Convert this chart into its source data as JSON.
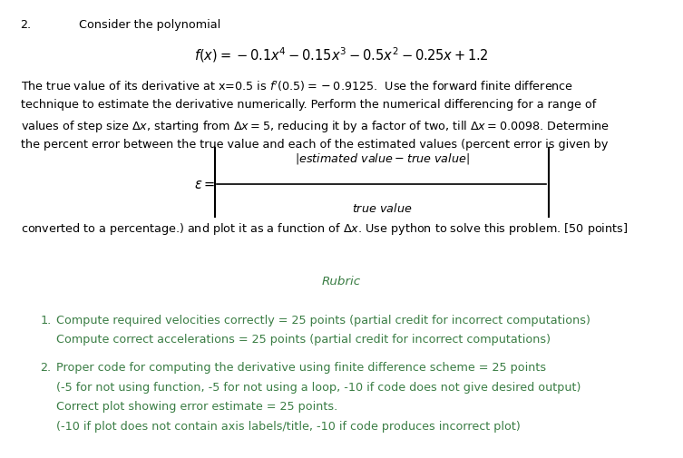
{
  "background_color": "#ffffff",
  "fig_width": 7.53,
  "fig_height": 5.06,
  "number_text": "2.",
  "header_text": "Consider the polynomial",
  "formula_text": "$f(x) = -0.1x^4 - 0.15x^3 - 0.5x^2 - 0.25x + 1.2$",
  "line1": "The true value of its derivative at x=0.5 is $f'(0.5) = -0.9125$.  Use the forward finite difference",
  "line2": "technique to estimate the derivative numerically. Perform the numerical differencing for a range of",
  "line3": "values of step size $\\Delta x$, starting from $\\Delta x = 5$, reducing it by a factor of two, till $\\Delta x = 0.0098$. Determine",
  "line4": "the percent error between the true value and each of the estimated values (percent error is given by",
  "line5": "converted to a percentage.) and plot it as a function of $\\Delta x$. Use python to solve this problem. [50 points]",
  "rubric_title": "Rubric",
  "rubric_color": "#3a7d44",
  "rubric_item1_line1": "Compute required velocities correctly = 25 points (partial credit for incorrect computations)",
  "rubric_item1_line2": "Compute correct accelerations = 25 points (partial credit for incorrect computations)",
  "rubric_item2_line1": "Proper code for computing the derivative using finite difference scheme = 25 points",
  "rubric_item2_line2": "(-5 for not using function, -5 for not using a loop, -10 if code does not give desired output)",
  "rubric_item2_line3": "Correct plot showing error estimate = 25 points.",
  "rubric_item2_line4": "(-10 if plot does not contain axis labels/title, -10 if code produces incorrect plot)"
}
